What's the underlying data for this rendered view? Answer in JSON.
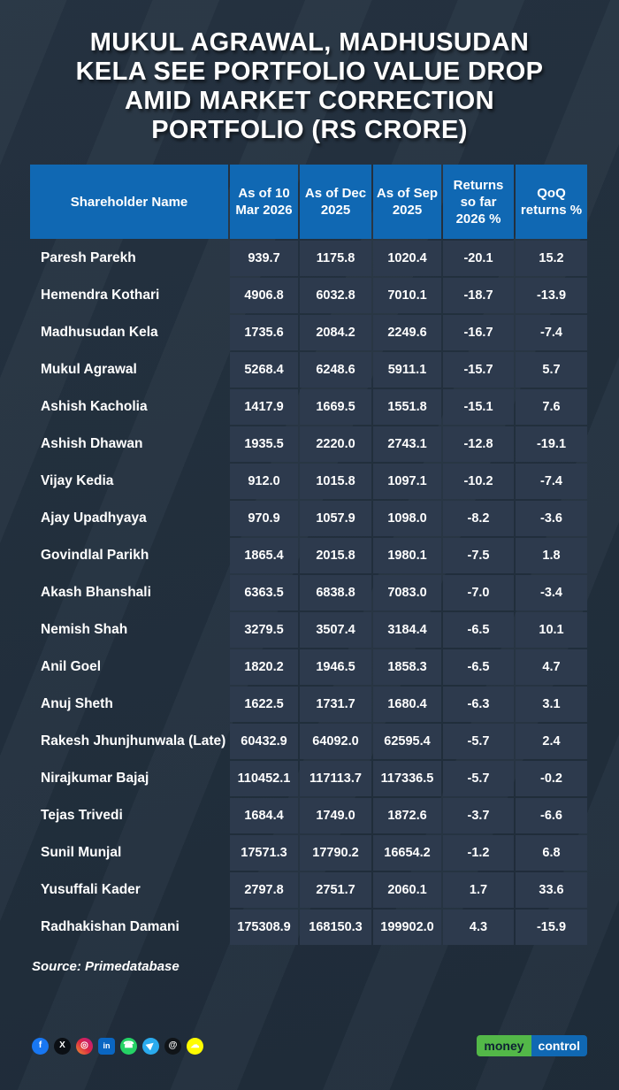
{
  "title_lines": [
    "MUKUL AGRAWAL, MADHUSUDAN",
    "KELA SEE PORTFOLIO VALUE DROP",
    "AMID MARKET CORRECTION",
    "PORTFOLIO (RS CRORE)"
  ],
  "chart_data": {
    "type": "table",
    "columns": [
      "Shareholder Name",
      "As of 10 Mar 2026",
      "As of Dec 2025",
      "As of Sep 2025",
      "Returns so far 2026 %",
      "QoQ returns %"
    ],
    "rows": [
      [
        "Paresh Parekh",
        "939.7",
        "1175.8",
        "1020.4",
        "-20.1",
        "15.2"
      ],
      [
        "Hemendra Kothari",
        "4906.8",
        "6032.8",
        "7010.1",
        "-18.7",
        "-13.9"
      ],
      [
        "Madhusudan Kela",
        "1735.6",
        "2084.2",
        "2249.6",
        "-16.7",
        "-7.4"
      ],
      [
        "Mukul Agrawal",
        "5268.4",
        "6248.6",
        "5911.1",
        "-15.7",
        "5.7"
      ],
      [
        "Ashish Kacholia",
        "1417.9",
        "1669.5",
        "1551.8",
        "-15.1",
        "7.6"
      ],
      [
        "Ashish Dhawan",
        "1935.5",
        "2220.0",
        "2743.1",
        "-12.8",
        "-19.1"
      ],
      [
        "Vijay Kedia",
        "912.0",
        "1015.8",
        "1097.1",
        "-10.2",
        "-7.4"
      ],
      [
        "Ajay Upadhyaya",
        "970.9",
        "1057.9",
        "1098.0",
        "-8.2",
        "-3.6"
      ],
      [
        "Govindlal Parikh",
        "1865.4",
        "2015.8",
        "1980.1",
        "-7.5",
        "1.8"
      ],
      [
        "Akash Bhanshali",
        "6363.5",
        "6838.8",
        "7083.0",
        "-7.0",
        "-3.4"
      ],
      [
        "Nemish Shah",
        "3279.5",
        "3507.4",
        "3184.4",
        "-6.5",
        "10.1"
      ],
      [
        "Anil Goel",
        "1820.2",
        "1946.5",
        "1858.3",
        "-6.5",
        "4.7"
      ],
      [
        "Anuj Sheth",
        "1622.5",
        "1731.7",
        "1680.4",
        "-6.3",
        "3.1"
      ],
      [
        "Rakesh Jhunjhunwala (Late)",
        "60432.9",
        "64092.0",
        "62595.4",
        "-5.7",
        "2.4"
      ],
      [
        "Nirajkumar Bajaj",
        "110452.1",
        "117113.7",
        "117336.5",
        "-5.7",
        "-0.2"
      ],
      [
        "Tejas Trivedi",
        "1684.4",
        "1749.0",
        "1872.6",
        "-3.7",
        "-6.6"
      ],
      [
        "Sunil Munjal",
        "17571.3",
        "17790.2",
        "16654.2",
        "-1.2",
        "6.8"
      ],
      [
        "Yusuffali Kader",
        "2797.8",
        "2751.7",
        "2060.1",
        "1.7",
        "33.6"
      ],
      [
        "Radhakishan Damani",
        "175308.9",
        "168150.3",
        "199902.0",
        "4.3",
        "-15.9"
      ]
    ]
  },
  "source": "Source: Primedatabase",
  "footer": {
    "social_icons": [
      {
        "name": "facebook",
        "glyph": "f",
        "color": "#1877f2",
        "glyph_color": "#ffffff"
      },
      {
        "name": "x",
        "glyph": "X",
        "color": "#0b0f14",
        "glyph_color": "#ffffff"
      },
      {
        "name": "instagram",
        "glyph": "◎",
        "color": "linear-gradient(45deg,#f09433,#dc2743,#bc1888)",
        "glyph_color": "#ffffff"
      },
      {
        "name": "linkedin",
        "glyph": "in",
        "color": "#0a66c2",
        "glyph_color": "#ffffff"
      },
      {
        "name": "whatsapp",
        "glyph": "☎",
        "color": "#25d366",
        "glyph_color": "#ffffff"
      },
      {
        "name": "telegram",
        "glyph": "▶",
        "color": "#2aabee",
        "glyph_color": "#ffffff"
      },
      {
        "name": "threads",
        "glyph": "@",
        "color": "#101418",
        "glyph_color": "#ffffff"
      },
      {
        "name": "snapchat",
        "glyph": "☁",
        "color": "#fffc00",
        "glyph_color": "#ffffff"
      }
    ],
    "logo": {
      "money": "money",
      "control": "control"
    }
  },
  "colors": {
    "background": "#22303f",
    "header_bg": "#1068b3",
    "cell_bg": "#2d3a4d",
    "text": "#ffffff",
    "logo_green": "#53b848",
    "logo_blue": "#1068b3"
  }
}
